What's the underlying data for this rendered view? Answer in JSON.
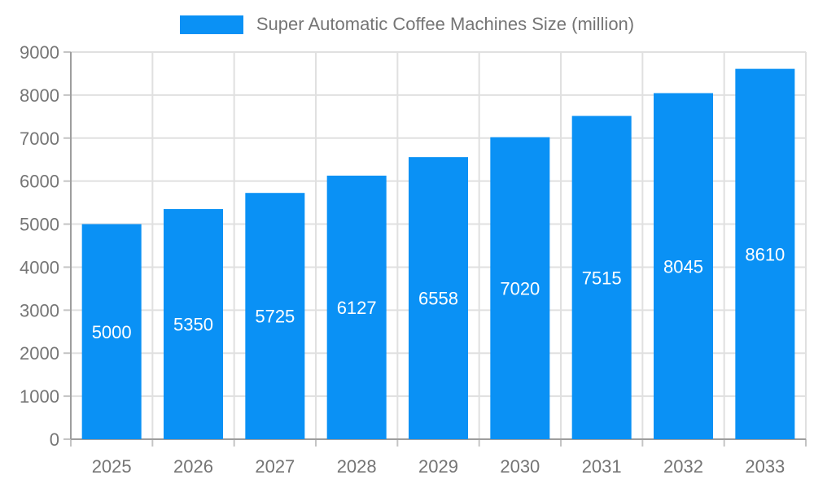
{
  "chart_data": {
    "type": "bar",
    "title": "Super Automatic Coffee Machines Size (million)",
    "series_name": "Super Automatic Coffee Machines Size (million)",
    "categories": [
      "2025",
      "2026",
      "2027",
      "2028",
      "2029",
      "2030",
      "2031",
      "2032",
      "2033"
    ],
    "values": [
      5000,
      5350,
      5725,
      6127,
      6558,
      7020,
      7515,
      8045,
      8610
    ],
    "xlabel": "",
    "ylabel": "",
    "ylim": [
      0,
      9000
    ],
    "y_tick_step": 1000,
    "grid": true,
    "legend_position": "top",
    "colors": {
      "bar": "#0a91f5",
      "bar_value_label": "#ffffff",
      "axis_text": "#757575",
      "grid_line": "#e0e0e0",
      "axis_line": "#9e9e9e",
      "tick_mark": "#c4c4c4",
      "background": "#ffffff"
    }
  }
}
